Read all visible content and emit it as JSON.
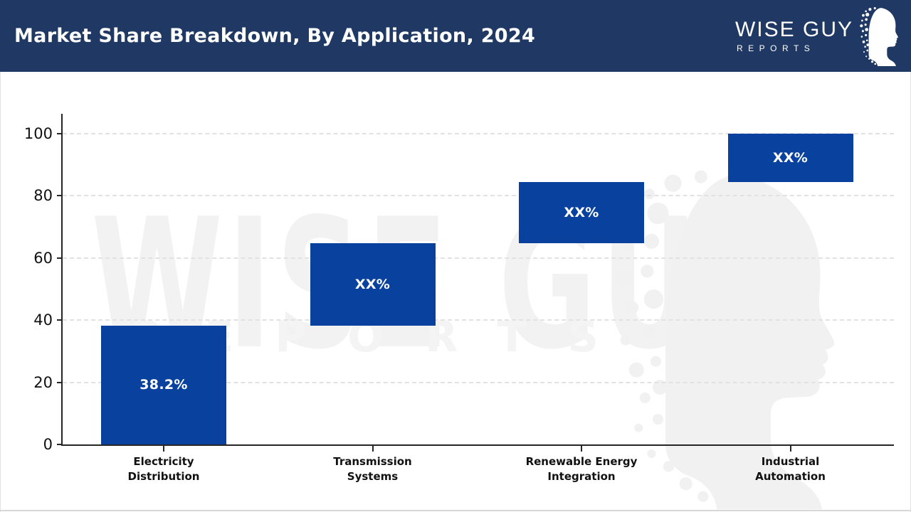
{
  "page": {
    "accent_navy": "#1f3864",
    "edge_line_color": "#d7d7d7"
  },
  "header": {
    "title": "Market Share Breakdown, By Application, 2024",
    "logo_line1": "WISE GUY",
    "logo_line2": "REPORTS"
  },
  "watermark": {
    "big_text": "WISE GUY",
    "small_text": "REPORTS"
  },
  "chart_data": {
    "type": "bar",
    "subtype": "floating-segment waterfall-style column chart",
    "title": "Market Share Breakdown, By Application, 2024",
    "categories": [
      "Electricity Distribution",
      "Transmission Systems",
      "Renewable Energy Integration",
      "Industrial Automation"
    ],
    "category_label_lines": [
      [
        "Electricity",
        "Distribution"
      ],
      [
        "Transmission",
        "Systems"
      ],
      [
        "Renewable Energy",
        "Integration"
      ],
      [
        "Industrial",
        "Automation"
      ]
    ],
    "segments": [
      {
        "category": "Electricity Distribution",
        "start": 0,
        "end": 38.2,
        "label": "38.2%"
      },
      {
        "category": "Transmission Systems",
        "start": 38.2,
        "end": 64.7,
        "label": "XX%"
      },
      {
        "category": "Renewable Energy Integration",
        "start": 64.7,
        "end": 84.3,
        "label": "XX%"
      },
      {
        "category": "Industrial Automation",
        "start": 84.3,
        "end": 100,
        "label": "XX%"
      }
    ],
    "xlabel": "",
    "ylabel": "",
    "yticks": [
      0,
      20,
      40,
      60,
      80,
      100
    ],
    "ylim": [
      0,
      107
    ],
    "grid": "horizontal dashed",
    "legend": "none",
    "bar_color": "#08429e",
    "bar_label_color": "#ffffff",
    "axis_color": "#262626"
  }
}
